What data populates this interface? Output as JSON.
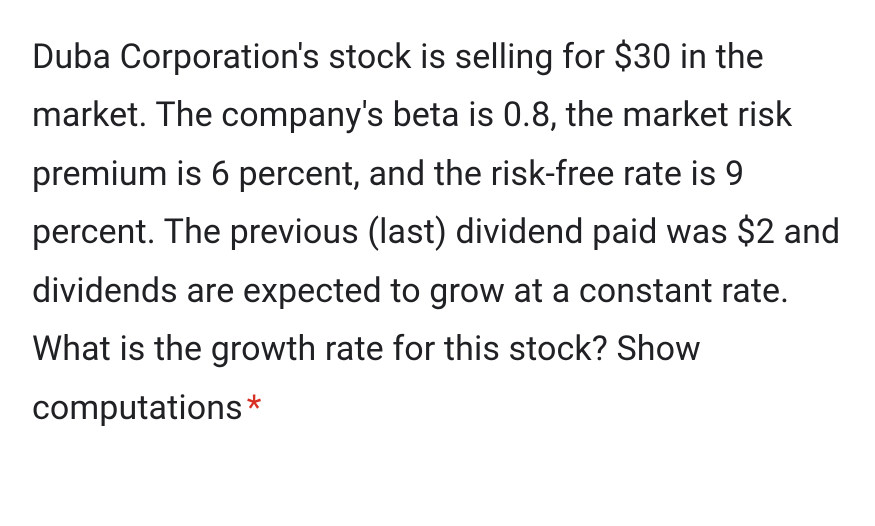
{
  "question": {
    "text": "Duba Corporation's stock is selling for $30 in the market. The company's beta is 0.8, the market risk premium is 6 percent, and the risk-free rate is 9 percent. The previous (last) dividend paid was $2 and dividends are expected to grow at a constant rate. What is the growth rate for this stock? Show computations",
    "required_marker": "*",
    "text_color": "#202124",
    "asterisk_color": "#d93025",
    "font_size": 34,
    "line_height": 1.72,
    "background_color": "#ffffff"
  }
}
